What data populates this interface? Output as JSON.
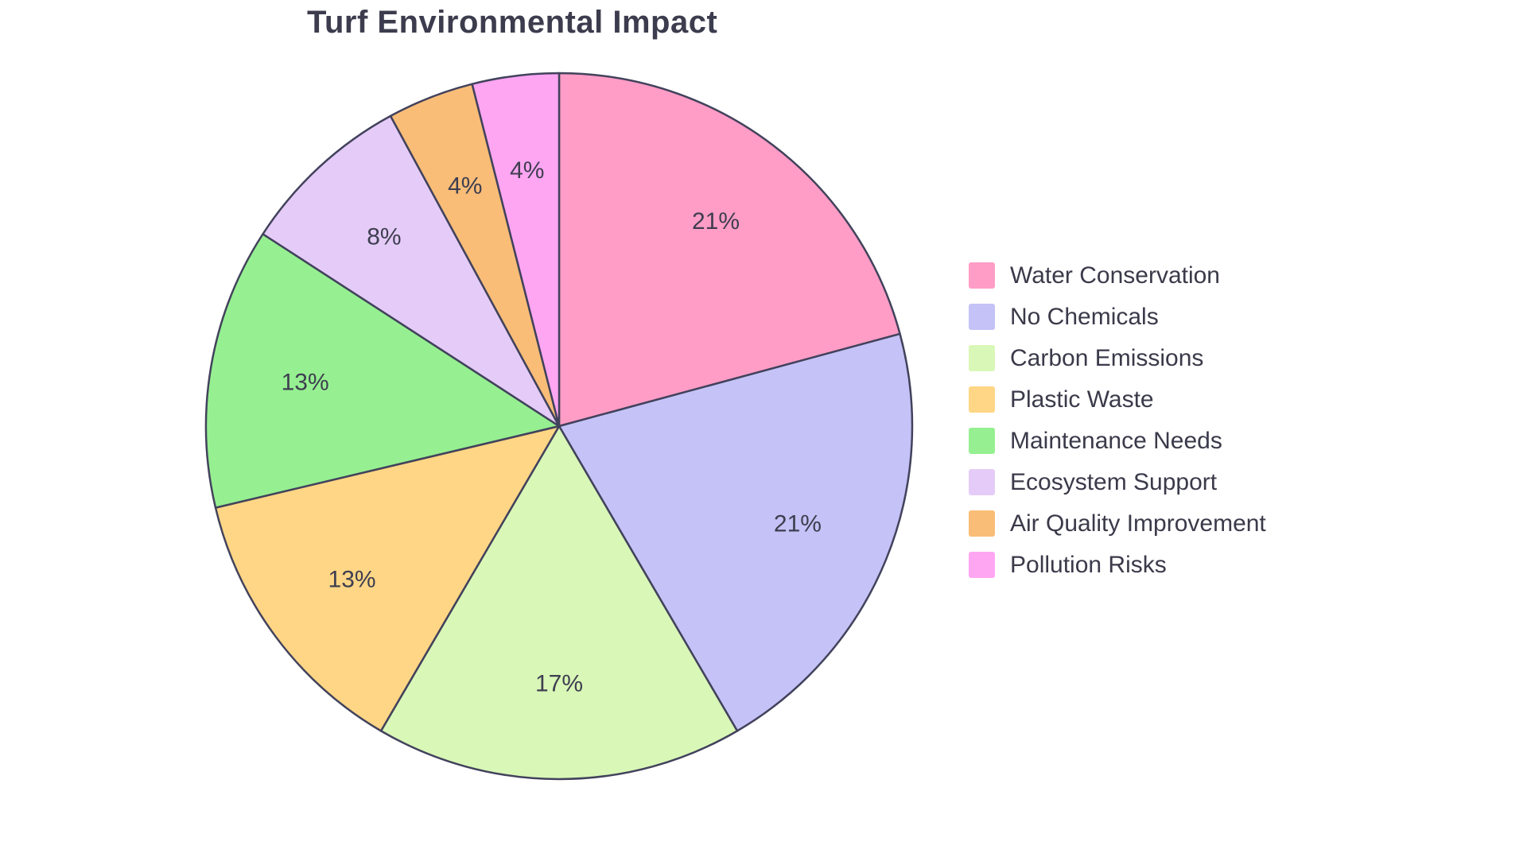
{
  "chart_data": {
    "type": "pie",
    "title": "Turf Environmental Impact",
    "labels": [
      "Water Conservation",
      "No Chemicals",
      "Carbon Emissions",
      "Plastic Waste",
      "Maintenance Needs",
      "Ecosystem Support",
      "Air Quality Improvement",
      "Pollution Risks"
    ],
    "values": [
      21,
      21,
      17,
      13,
      13,
      8,
      4,
      4
    ],
    "display_percents": [
      "21%",
      "21%",
      "17%",
      "13%",
      "13%",
      "8%",
      "4%",
      "4%"
    ],
    "colors": [
      "#FF9DC6",
      "#C4C2F6",
      "#D9F7B7",
      "#FFD685",
      "#96F091",
      "#E5CCF8",
      "#F9BD77",
      "#FFA6F3"
    ],
    "slice_border_color": "#42425c",
    "label_color": "#3e3e50",
    "start_angle_deg": -90,
    "direction": "clockwise",
    "legend_position": "right",
    "grid": false
  }
}
